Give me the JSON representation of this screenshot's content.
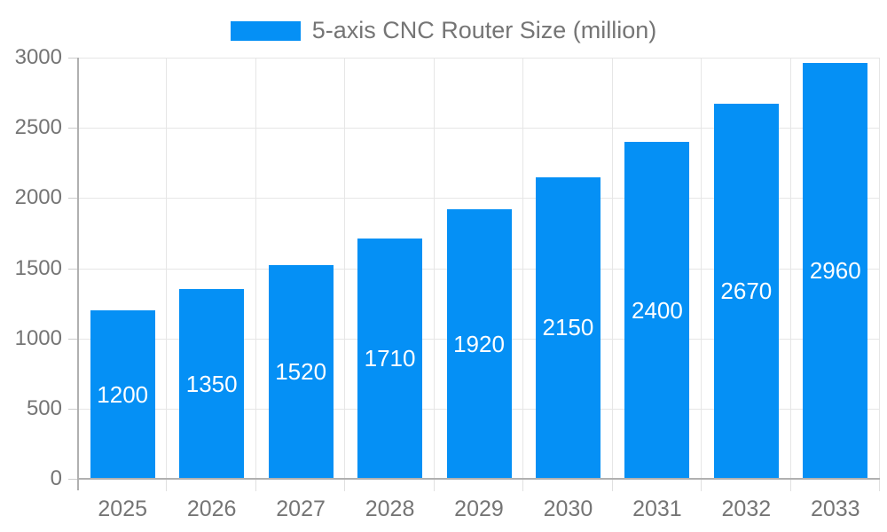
{
  "chart_data": {
    "type": "bar",
    "title": "5-axis CNC Router Size (million)",
    "categories": [
      "2025",
      "2026",
      "2027",
      "2028",
      "2029",
      "2030",
      "2031",
      "2032",
      "2033"
    ],
    "values": [
      1200,
      1350,
      1520,
      1710,
      1920,
      2150,
      2400,
      2670,
      2960
    ],
    "xlabel": "",
    "ylabel": "",
    "ylim": [
      0,
      3000
    ],
    "yticks": [
      0,
      500,
      1000,
      1500,
      2000,
      2500,
      3000
    ],
    "grid": true,
    "legend_position": "top",
    "bar_color": "#0590f5",
    "grid_color": "#e6e6e6",
    "axis_color": "#b0b0b0",
    "tick_text_color": "#757575",
    "bar_label_color": "#ffffff"
  }
}
